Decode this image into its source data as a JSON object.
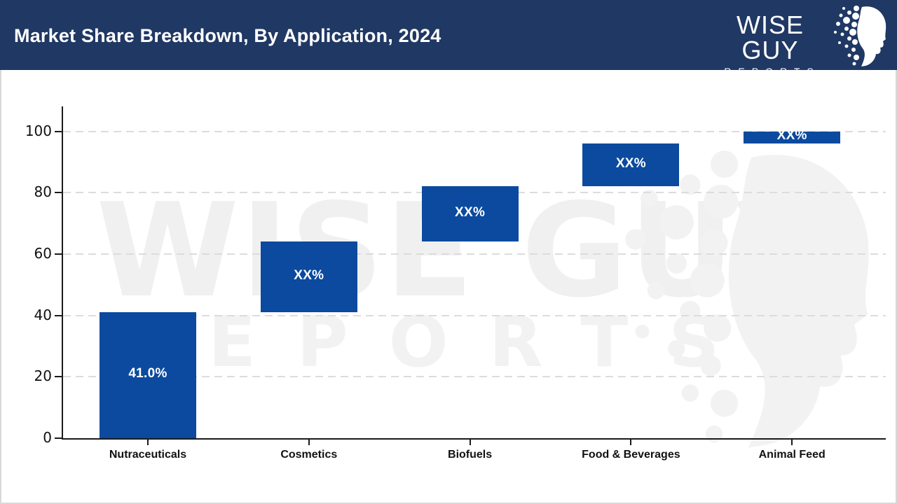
{
  "header": {
    "title": "Market Share Breakdown, By Application, 2024",
    "logo": {
      "line1": "WISE GUY",
      "line2": "REPORTS"
    }
  },
  "watermark": {
    "line1": "WISE GUY",
    "line2": "REPORTS"
  },
  "colors": {
    "header_bg": "#203864",
    "bar": "#0b4a9e",
    "bar_label": "#ffffff",
    "gridline": "#dcdcdc",
    "axis": "#1a1a1a"
  },
  "chart_data": {
    "type": "bar",
    "subtype": "waterfall",
    "title": "Market Share Breakdown, By Application, 2024",
    "xlabel": "",
    "ylabel": "",
    "ylim": [
      0,
      108
    ],
    "yticks": [
      0,
      20,
      40,
      60,
      80,
      100
    ],
    "grid": "dashed horizontal",
    "legend": "none",
    "categories": [
      "Nutraceuticals",
      "Cosmetics",
      "Biofuels",
      "Food & Beverages",
      "Animal Feed"
    ],
    "bars": [
      {
        "category": "Nutraceuticals",
        "start": 0,
        "end": 41,
        "label": "41.0%"
      },
      {
        "category": "Cosmetics",
        "start": 41,
        "end": 64,
        "label": "XX%"
      },
      {
        "category": "Biofuels",
        "start": 64,
        "end": 82,
        "label": "XX%"
      },
      {
        "category": "Food & Beverages",
        "start": 82,
        "end": 96,
        "label": "XX%"
      },
      {
        "category": "Animal Feed",
        "start": 96,
        "end": 100,
        "label": "XX%"
      }
    ]
  }
}
